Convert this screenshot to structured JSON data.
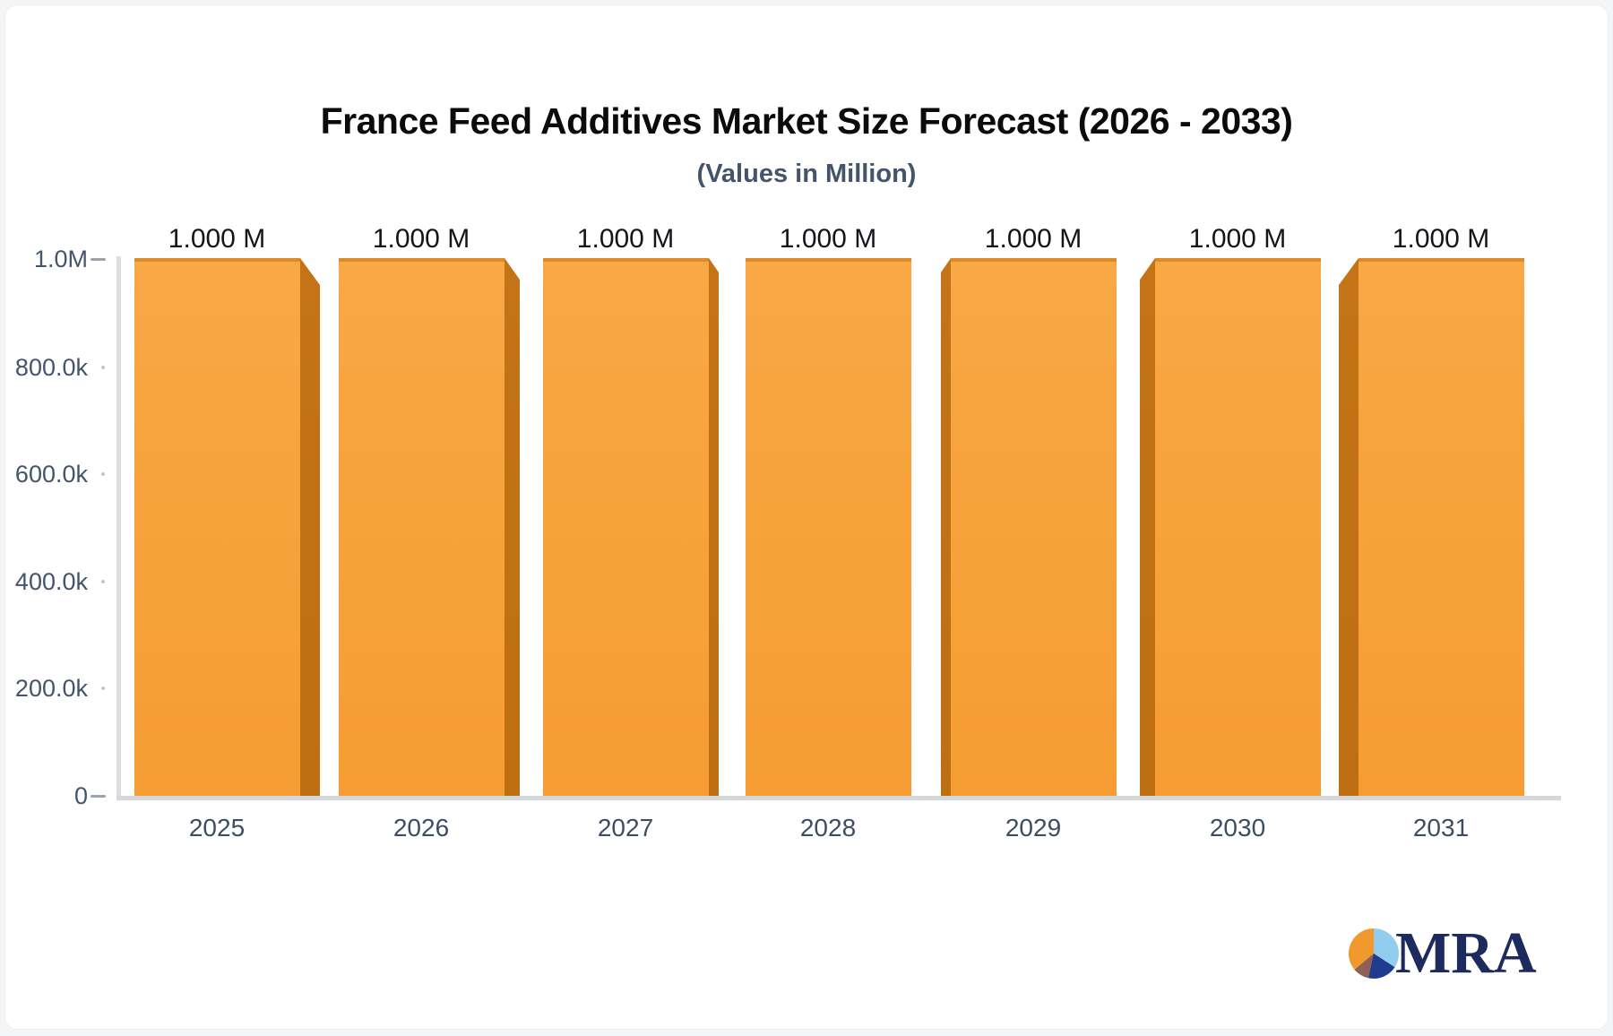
{
  "header": {
    "title": "France Feed Additives Market Size Forecast (2026 - 2033)",
    "subtitle": "(Values in Million)"
  },
  "chart_data": {
    "type": "bar",
    "title": "France Feed Additives Market Size Forecast (2026 - 2033)",
    "subtitle": "(Values in Million)",
    "categories": [
      "2025",
      "2026",
      "2027",
      "2028",
      "2029",
      "2030",
      "2031"
    ],
    "values": [
      1000000,
      1000000,
      1000000,
      1000000,
      1000000,
      1000000,
      1000000
    ],
    "value_labels": [
      "1.000 M",
      "1.000 M",
      "1.000 M",
      "1.000 M",
      "1.000 M",
      "1.000 M",
      "1.000 M"
    ],
    "y_tick_labels": [
      "1.0M",
      "800.0k",
      "600.0k",
      "400.0k",
      "200.0k",
      "0"
    ],
    "ylim": [
      0,
      1000000
    ],
    "ylabel": "",
    "xlabel": "",
    "grid": false,
    "legend": false,
    "bar_style": "3d-bevel",
    "colors": {
      "bar_face": "#f8a23c",
      "bar_face_top_border": "#db8c28",
      "bar_side": "#c07014",
      "axis_line": "#d5d8db",
      "tick_label": "#44546A",
      "value_label": "#131519",
      "title": "#0a0b0d",
      "subtitle": "#44546A"
    }
  },
  "branding": {
    "logo_text": "MRA",
    "logo_text_color": "#1c2a5e",
    "pie_colors": [
      "#f2992d",
      "#92ccee",
      "#1f3c8e",
      "#8d6157"
    ]
  }
}
